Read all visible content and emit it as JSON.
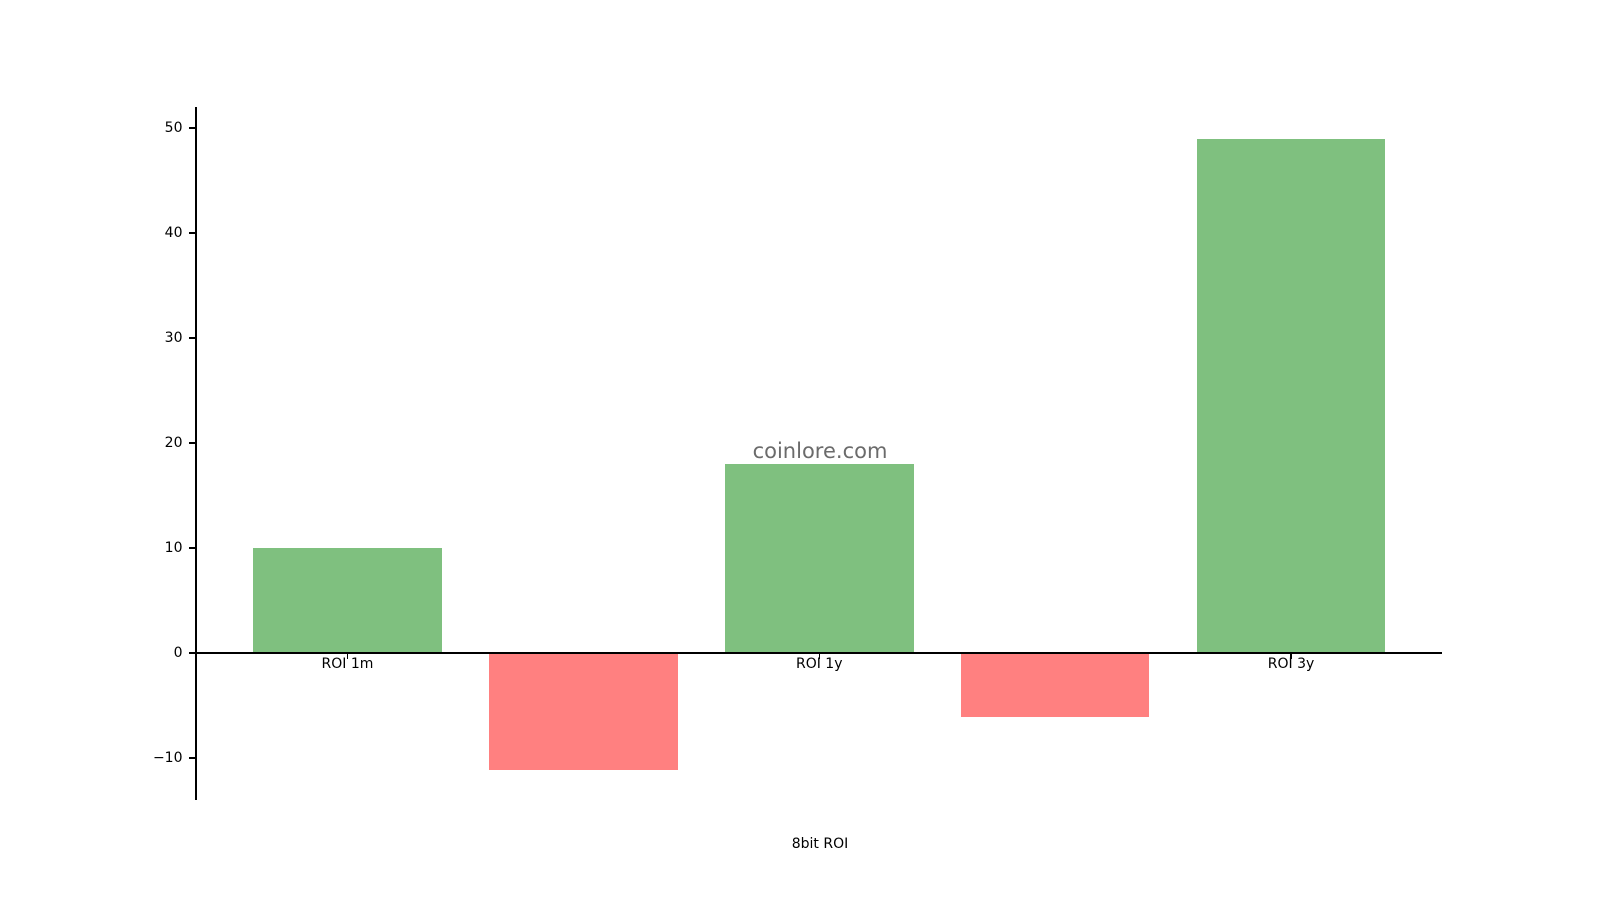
{
  "watermark": {
    "text": "coinlore.com"
  },
  "chart_data": {
    "type": "bar",
    "title": "",
    "xlabel": "8bit ROI",
    "ylabel": "",
    "x": [
      0,
      1,
      2,
      3,
      4
    ],
    "values": [
      10,
      -11,
      18,
      -6,
      49
    ],
    "bar_signs": [
      "positive",
      "negative",
      "positive",
      "negative",
      "positive"
    ],
    "bar_names": [
      "roi-1m",
      "roi-mid-1",
      "roi-1y",
      "roi-mid-2",
      "roi-3y"
    ],
    "xticks": [
      {
        "pos": 0,
        "label": "ROI 1m"
      },
      {
        "pos": 2,
        "label": "ROI 1y"
      },
      {
        "pos": 4,
        "label": "ROI 3y"
      }
    ],
    "yticks": [
      {
        "value": 50,
        "label": "50"
      },
      {
        "value": 40,
        "label": "40"
      },
      {
        "value": 30,
        "label": "30"
      },
      {
        "value": 20,
        "label": "20"
      },
      {
        "value": 10,
        "label": "10"
      },
      {
        "value": 0,
        "label": "0"
      },
      {
        "value": -10,
        "label": "−10"
      }
    ],
    "xlim": [
      -0.64,
      4.64
    ],
    "ylim": [
      -14,
      52
    ],
    "bar_width": 0.8,
    "grid": false,
    "legend": "none",
    "colors": {
      "positive": "#7fc07f",
      "negative": "#ff8080",
      "axis": "#000000",
      "watermark": "#6b6b6b"
    }
  }
}
